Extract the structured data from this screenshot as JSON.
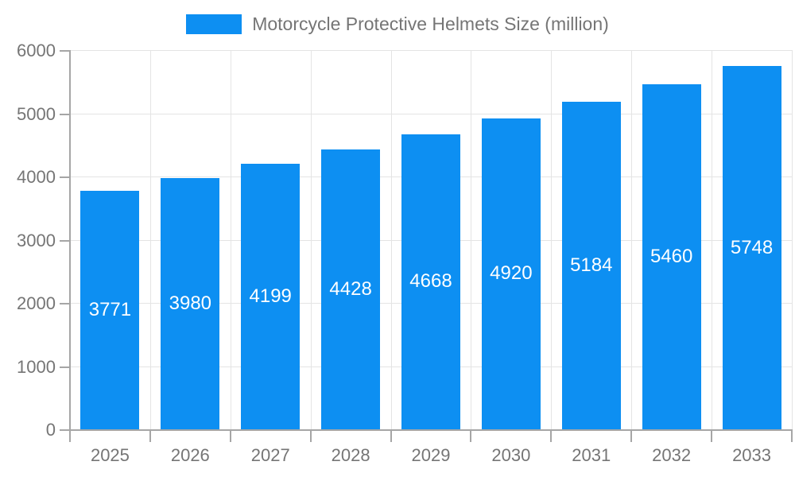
{
  "chart_data": {
    "type": "bar",
    "title": "Motorcycle Protective Helmets Size (million)",
    "legend": [
      "Motorcycle Protective Helmets Size (million)"
    ],
    "legend_position": "top",
    "categories": [
      "2025",
      "2026",
      "2027",
      "2028",
      "2029",
      "2030",
      "2031",
      "2032",
      "2033"
    ],
    "values": [
      3771,
      3980,
      4199,
      4428,
      4668,
      4920,
      5184,
      5460,
      5748
    ],
    "xlabel": "",
    "ylabel": "",
    "ylim": [
      0,
      6000
    ],
    "ytick_step": 1000,
    "ytick_labels": [
      "0",
      "1000",
      "2000",
      "3000",
      "4000",
      "5000",
      "6000"
    ],
    "grid": true,
    "value_labels_shown": true,
    "colors": {
      "bar": "#0d8ff2",
      "value_label": "#ffffff",
      "axis_text": "#757575",
      "axis_line": "#a6a6a6",
      "grid_line": "#e4e4e4",
      "background": "#ffffff"
    }
  }
}
